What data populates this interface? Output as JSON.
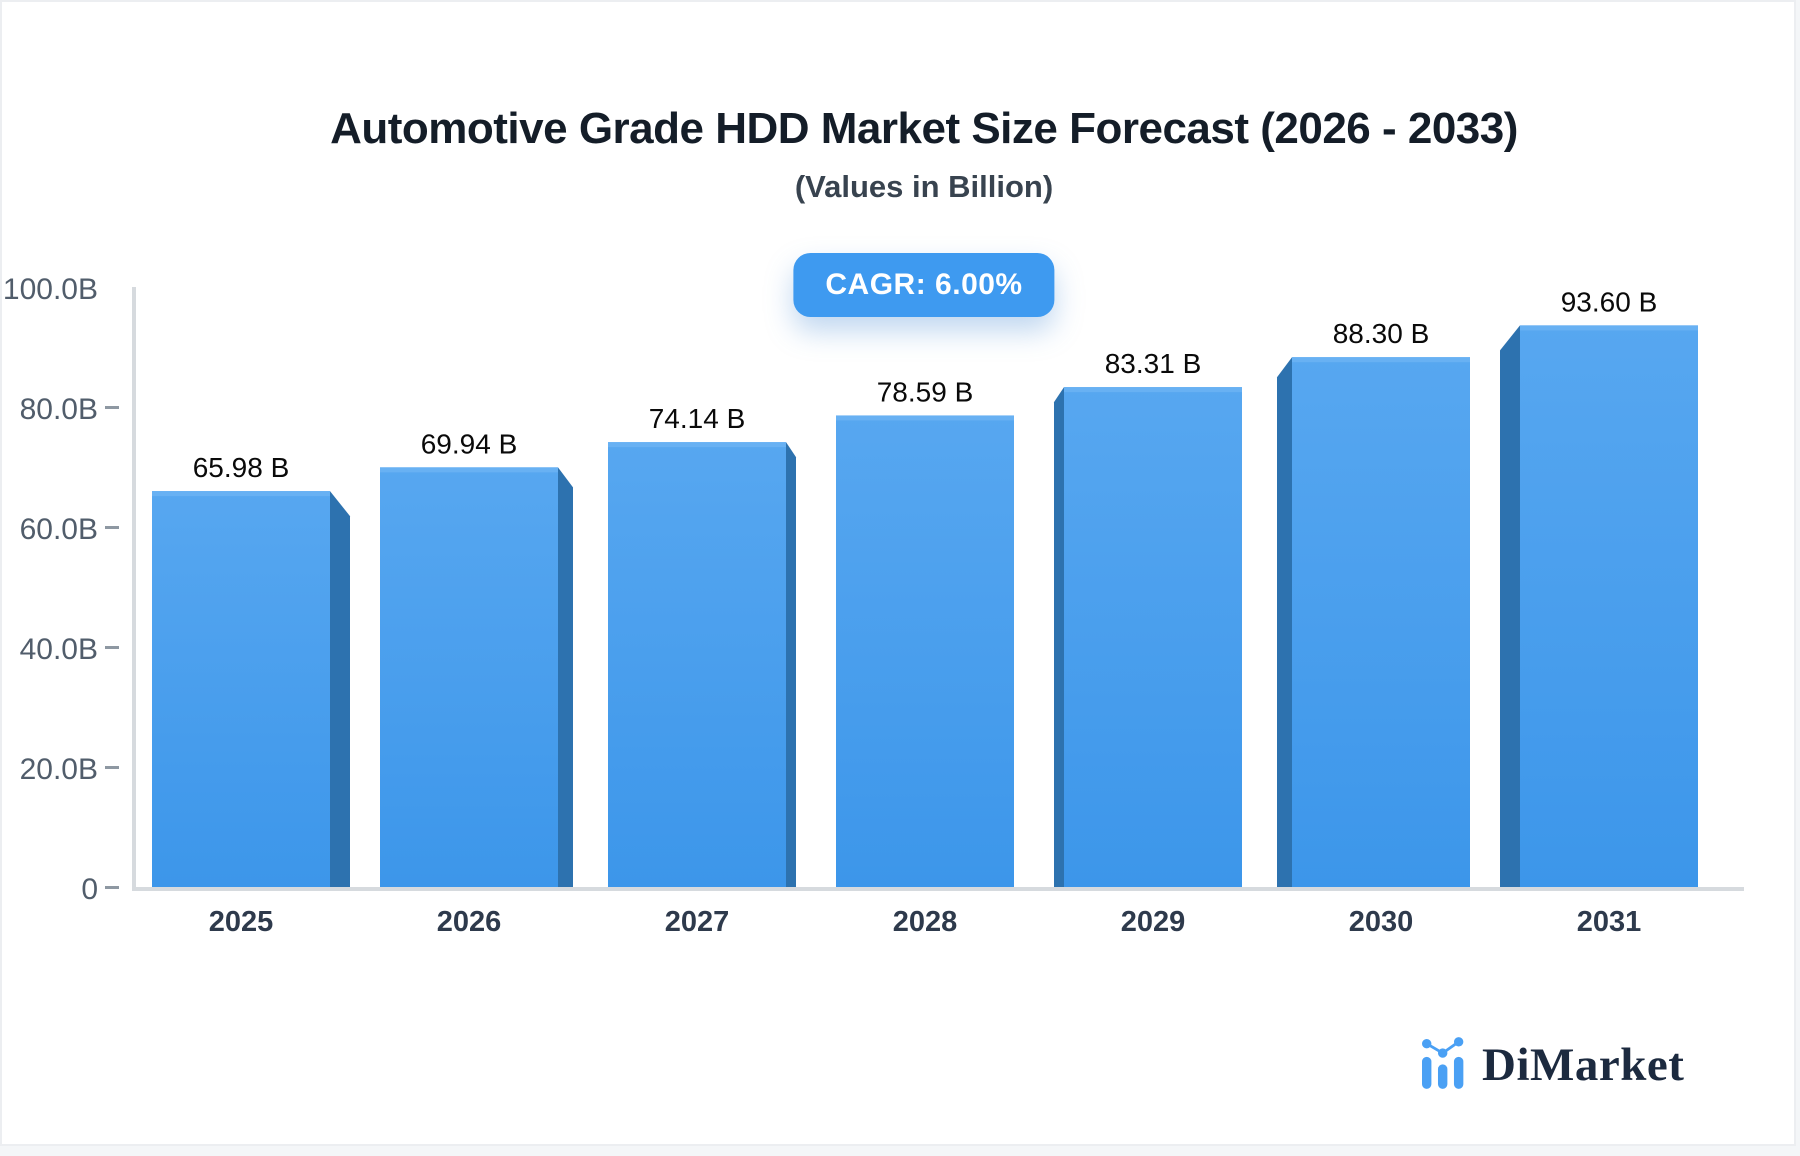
{
  "header": {
    "title": "Automotive Grade HDD Market Size Forecast (2026 - 2033)",
    "subtitle": "(Values in Billion)",
    "cagr_badge": "CAGR: 6.00%"
  },
  "chart_data": {
    "type": "bar",
    "title": "Automotive Grade HDD Market Size Forecast (2026 - 2033)",
    "subtitle": "(Values in Billion)",
    "unit": "Billion",
    "cagr": "6.00%",
    "categories": [
      "2025",
      "2026",
      "2027",
      "2028",
      "2029",
      "2030",
      "2031"
    ],
    "values": [
      65.98,
      69.94,
      74.14,
      78.59,
      83.31,
      88.3,
      93.6
    ],
    "value_labels": [
      "65.98 B",
      "69.94 B",
      "74.14 B",
      "78.59 B",
      "83.31 B",
      "88.30 B",
      "93.60 B"
    ],
    "ylim": [
      0,
      100
    ],
    "y_ticks": [
      0,
      20,
      40,
      60,
      80,
      100
    ],
    "y_tick_labels": [
      "0",
      "20.0B",
      "40.0B",
      "60.0B",
      "80.0B",
      "100.0B"
    ],
    "grid": "off",
    "legend": "none",
    "bar_style": "3d-perspective-center-vanishing"
  },
  "colors": {
    "background": "#ffffff",
    "bar_body_top": "#57a7f0",
    "bar_body_bottom": "#3c96ea",
    "bar_side_panel": "#2d72af",
    "bar_top_highlight": "#68b1f3",
    "badge_bg": "#3e9af0",
    "badge_text": "#ffffff",
    "axis_line": "#d6dade",
    "tick_dash": "#8e98a2",
    "y_label": "#515d6b",
    "x_label": "#2e3a4c",
    "value_label": "#0a0a0a",
    "title": "#141d28",
    "subtitle": "#38434f",
    "logo_text": "#1c2a3f",
    "logo_icon": "#4aa0f4"
  },
  "branding": {
    "logo_text": "DiMarket",
    "logo_icon": "bar-chart-logo-icon"
  }
}
